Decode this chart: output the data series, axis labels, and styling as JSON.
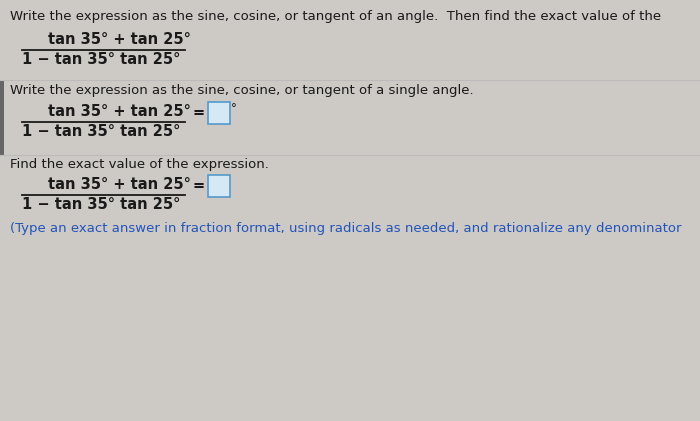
{
  "bg_color": "#cdc9c4",
  "text_color": "#1a1a1a",
  "blue_color": "#2255bb",
  "title_text": "Write the expression as the sine, cosine, or tangent of an angle.  Then find the exact value of the",
  "section2_label": "Write the expression as the sine, cosine, or tangent of a single angle.",
  "section3_label": "Find the exact value of the expression.",
  "footer_text": "(Type an exact answer in fraction format, using radicals as needed, and rationalize any denominator",
  "fraction_num": "tan 35° + tan 25°",
  "fraction_den": "1 − tan 35° tan 25°",
  "divider_color": "#bbbbbb",
  "box_color": "#d4e8f5"
}
